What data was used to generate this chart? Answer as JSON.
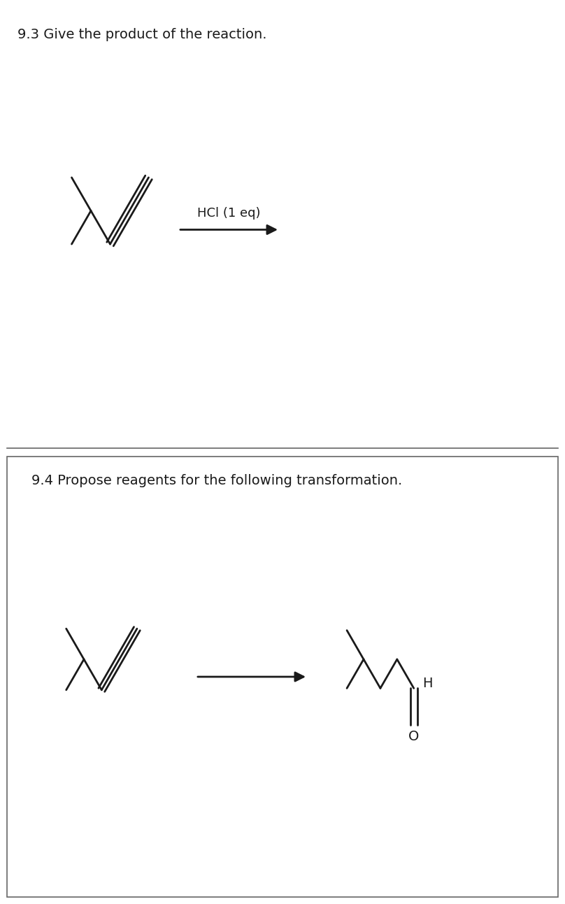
{
  "bg_color": "#ffffff",
  "text_color": "#1a1a1a",
  "title1": "9.3 Give the product of the reaction.",
  "title2": "9.4 Propose reagents for the following transformation.",
  "arrow_label": "HCl (1 eq)",
  "font_size_title": 14,
  "font_size_label": 13,
  "lw": 2.0
}
